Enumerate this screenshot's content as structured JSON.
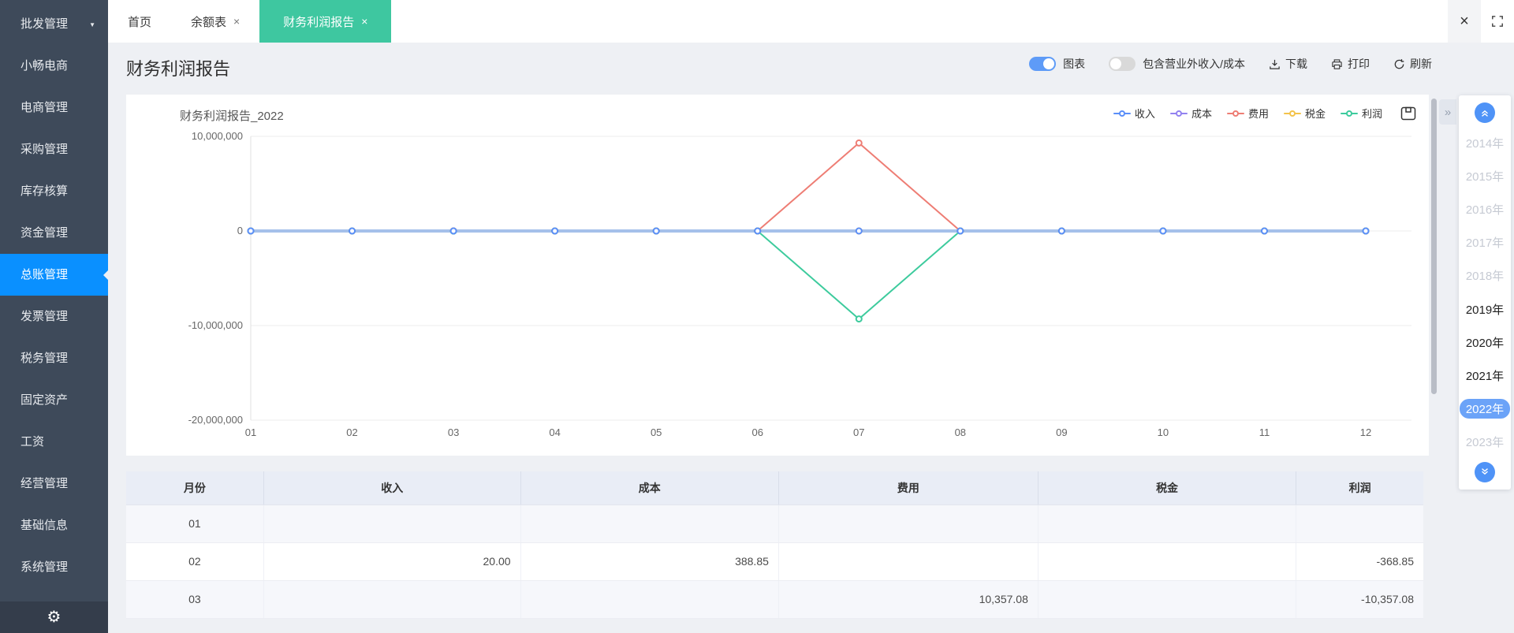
{
  "icons": {
    "caret": "▼",
    "gear": "⚙",
    "close": "×",
    "collapse": "»"
  },
  "colors": {
    "sidebar_bg": "#3e4a5a",
    "sidebar_active": "#0a90ff",
    "tab_active_green": "#3ec7a0",
    "toggle_on": "#5e9bf7",
    "year_selected": "#6ba3f8",
    "circle_button": "#4f93f7"
  },
  "sidebar": {
    "items": [
      {
        "label": "批发管理",
        "caret": true,
        "active": false
      },
      {
        "label": "小畅电商",
        "active": false
      },
      {
        "label": "电商管理",
        "active": false
      },
      {
        "label": "采购管理",
        "active": false
      },
      {
        "label": "库存核算",
        "active": false
      },
      {
        "label": "资金管理",
        "active": false
      },
      {
        "label": "总账管理",
        "active": true
      },
      {
        "label": "发票管理",
        "active": false
      },
      {
        "label": "税务管理",
        "active": false
      },
      {
        "label": "固定资产",
        "active": false
      },
      {
        "label": "工资",
        "active": false
      },
      {
        "label": "经营管理",
        "active": false
      },
      {
        "label": "基础信息",
        "active": false
      },
      {
        "label": "系统管理",
        "active": false
      }
    ]
  },
  "tabs": [
    {
      "label": "首页",
      "closable": false,
      "active": false
    },
    {
      "label": "余额表",
      "closable": true,
      "active": false
    },
    {
      "label": "财务利润报告",
      "closable": true,
      "active": true
    }
  ],
  "page": {
    "title": "财务利润报告"
  },
  "toolbar": {
    "chart_toggle_label": "图表",
    "chart_toggle_on": true,
    "include_toggle_label": "包含营业外收入/成本",
    "include_toggle_on": false,
    "download_label": "下载",
    "print_label": "打印",
    "refresh_label": "刷新"
  },
  "chart_data": {
    "type": "line",
    "title": "财务利润报告_2022",
    "categories": [
      "01",
      "02",
      "03",
      "04",
      "05",
      "06",
      "07",
      "08",
      "09",
      "10",
      "11",
      "12"
    ],
    "ylim": [
      -20000000,
      10000000
    ],
    "grid": true,
    "legend_position": "top-right",
    "yticks": [
      {
        "value": 10000000,
        "label": "10,000,000"
      },
      {
        "value": 0,
        "label": "0"
      },
      {
        "value": -10000000,
        "label": "-10,000,000"
      },
      {
        "value": -20000000,
        "label": "-20,000,000"
      }
    ],
    "series": [
      {
        "name": "成本",
        "color": "#9282f0",
        "marker_color": "#9282f0",
        "width": 2,
        "values": [
          0,
          388.85,
          0,
          0,
          0,
          0,
          0,
          0,
          0,
          0,
          0,
          0
        ]
      },
      {
        "name": "税金",
        "color": "#f3c34b",
        "marker_color": "#f3c34b",
        "width": 2,
        "values": [
          0,
          0,
          0,
          0,
          0,
          0,
          0,
          0,
          0,
          0,
          0,
          0
        ]
      },
      {
        "name": "费用",
        "color": "#ee7d74",
        "marker_color": "#ee7d74",
        "width": 2,
        "values": [
          0,
          0,
          10357.08,
          0,
          0,
          0,
          9300000,
          0,
          0,
          0,
          0,
          0
        ]
      },
      {
        "name": "利润",
        "color": "#3dcb9d",
        "marker_color": "#3dcb9d",
        "width": 2,
        "values": [
          0,
          -368.85,
          -10357.08,
          0,
          0,
          0,
          -9300000,
          0,
          0,
          0,
          0,
          0
        ]
      },
      {
        "name": "收入",
        "color": "#a5c0ea",
        "marker_color": "#5b8ff9",
        "width": 4,
        "values": [
          0,
          20,
          0,
          0,
          0,
          0,
          0,
          0,
          0,
          0,
          0,
          0
        ]
      }
    ],
    "legend_order": [
      "收入",
      "成本",
      "费用",
      "税金",
      "利润"
    ]
  },
  "table": {
    "columns": [
      "月份",
      "收入",
      "成本",
      "费用",
      "税金",
      "利润"
    ],
    "rows": [
      [
        "01",
        "",
        "",
        "",
        "",
        ""
      ],
      [
        "02",
        "20.00",
        "388.85",
        "",
        "",
        "-368.85"
      ],
      [
        "03",
        "",
        "",
        "10,357.08",
        "",
        "-10,357.08"
      ]
    ]
  },
  "year_panel": {
    "years": [
      {
        "label": "2014年",
        "state": "disabled"
      },
      {
        "label": "2015年",
        "state": "disabled"
      },
      {
        "label": "2016年",
        "state": "disabled"
      },
      {
        "label": "2017年",
        "state": "disabled"
      },
      {
        "label": "2018年",
        "state": "disabled"
      },
      {
        "label": "2019年",
        "state": "normal"
      },
      {
        "label": "2020年",
        "state": "normal"
      },
      {
        "label": "2021年",
        "state": "normal"
      },
      {
        "label": "2022年",
        "state": "selected"
      },
      {
        "label": "2023年",
        "state": "disabled"
      }
    ]
  }
}
